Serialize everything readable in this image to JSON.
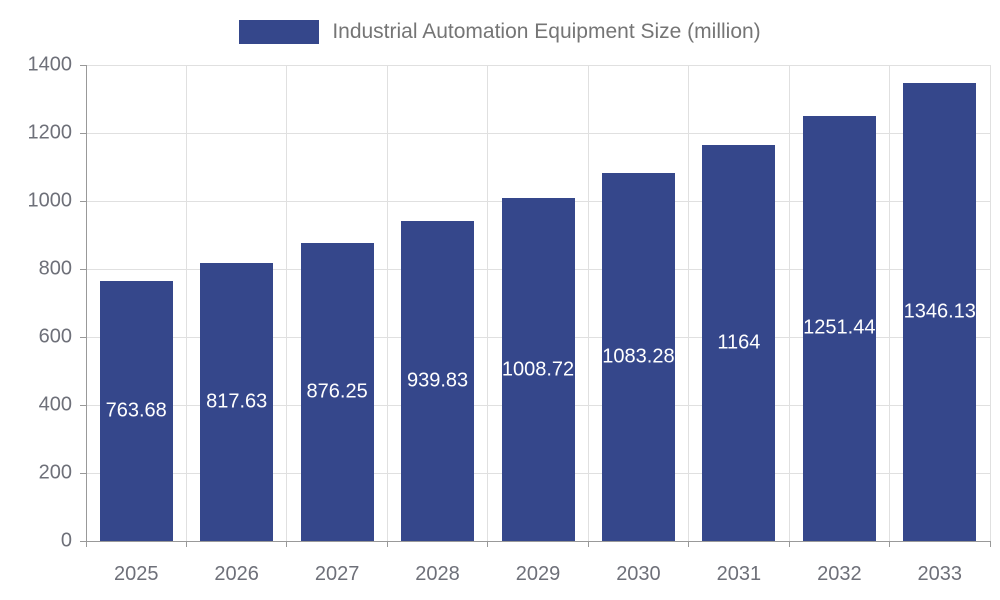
{
  "chart_data": {
    "type": "bar",
    "title": "",
    "legend": {
      "label": "Industrial Automation Equipment Size (million)",
      "position": "top"
    },
    "categories": [
      "2025",
      "2026",
      "2027",
      "2028",
      "2029",
      "2030",
      "2031",
      "2032",
      "2033"
    ],
    "series": [
      {
        "name": "Industrial Automation Equipment Size (million)",
        "values": [
          763.68,
          817.63,
          876.25,
          939.83,
          1008.72,
          1083.28,
          1164,
          1251.44,
          1346.13
        ],
        "value_labels": [
          "763.68",
          "817.63",
          "876.25",
          "939.83",
          "1008.72",
          "1083.28",
          "1164",
          "1251.44",
          "1346.13"
        ]
      }
    ],
    "xlabel": "",
    "ylabel": "",
    "ylim": [
      0,
      1400
    ],
    "yticks": [
      0,
      200,
      400,
      600,
      800,
      1000,
      1200,
      1400
    ],
    "grid": true,
    "bar_label_position": "inside-center"
  },
  "colors": {
    "bar": "#35478B",
    "grid": "#e0e0e0",
    "axis": "#999999",
    "axis_text": "#6e7079",
    "legend_text": "#757575",
    "bar_label": "#ffffff",
    "background": "#ffffff"
  }
}
